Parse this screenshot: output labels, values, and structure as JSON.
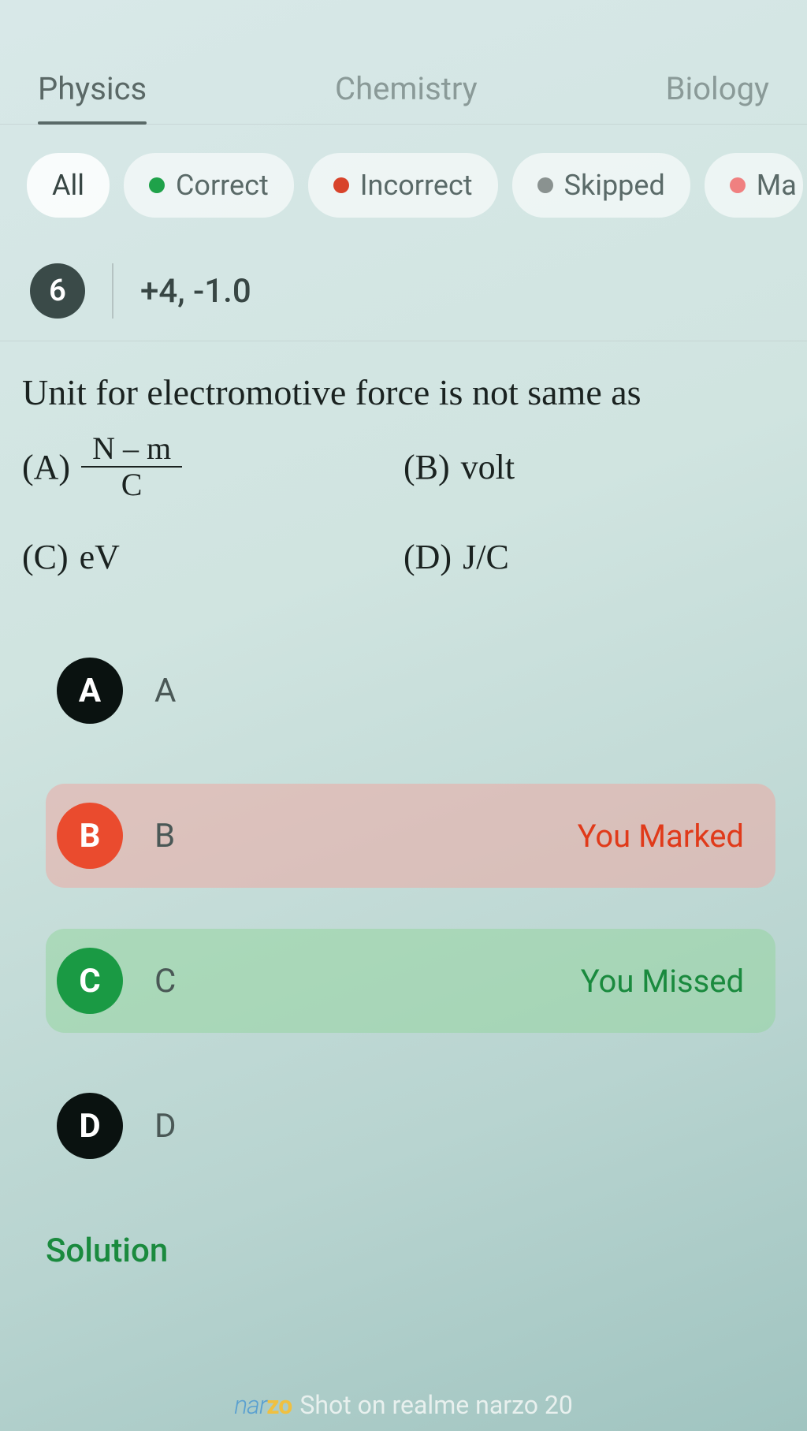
{
  "tabs": {
    "physics": "Physics",
    "chemistry": "Chemistry",
    "biology": "Biology",
    "active": "physics"
  },
  "filters": {
    "all": "All",
    "correct": "Correct",
    "incorrect": "Incorrect",
    "skipped": "Skipped",
    "marked": "Ma",
    "colors": {
      "correct": "#1fa24a",
      "incorrect": "#d8432a",
      "skipped": "#8a9290",
      "marked": "#f08080"
    }
  },
  "question": {
    "number": "6",
    "score": "+4, -1.0",
    "text": "Unit for electromotive force is not same as",
    "options": {
      "A": {
        "label": "(A)",
        "frac_num": "N – m",
        "frac_den": "C"
      },
      "B": {
        "label": "(B)",
        "value": "volt"
      },
      "C": {
        "label": "(C)",
        "value": "eV"
      },
      "D": {
        "label": "(D)",
        "value": "J/C"
      }
    }
  },
  "answers": {
    "A": {
      "circle": "A",
      "letter": "A",
      "status": "",
      "row_bg": "transparent",
      "circle_bg": "#0a1210",
      "status_color": ""
    },
    "B": {
      "circle": "B",
      "letter": "B",
      "status": "You Marked",
      "row_bg": "rgba(236,170,164,0.55)",
      "circle_bg": "#ea4b2e",
      "status_color": "#e03a1a"
    },
    "C": {
      "circle": "C",
      "letter": "C",
      "status": "You Missed",
      "row_bg": "rgba(150,214,160,0.55)",
      "circle_bg": "#1a9a44",
      "status_color": "#1a8a3e"
    },
    "D": {
      "circle": "D",
      "letter": "D",
      "status": "",
      "row_bg": "transparent",
      "circle_bg": "#0a1210",
      "status_color": ""
    }
  },
  "solution_label": "Solution",
  "watermark": {
    "brand_pre": "nar",
    "brand_post": "zo",
    "text": "Shot on realme narzo 20"
  }
}
